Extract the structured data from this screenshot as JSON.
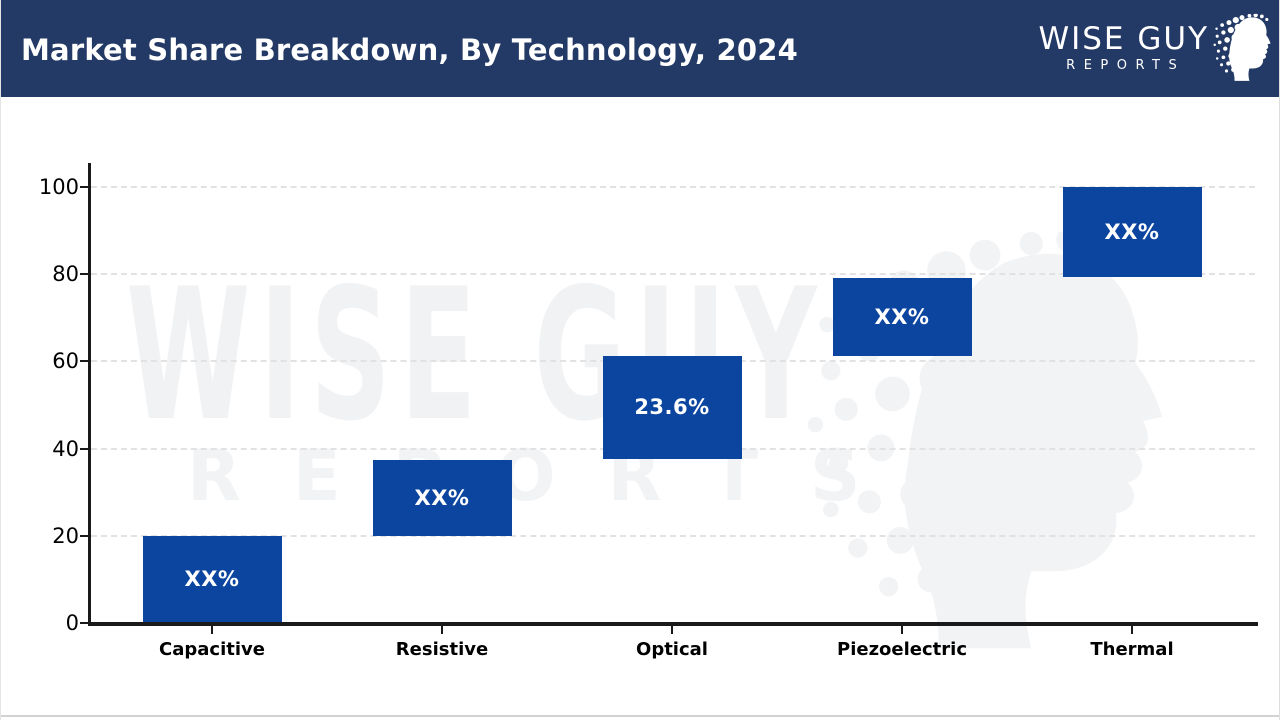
{
  "header": {
    "title": "Market Share Breakdown, By Technology, 2024",
    "brand": {
      "name": "WISE GUY",
      "subtitle": "REPORTS"
    }
  },
  "watermark": {
    "brand_name": "WISE GUY",
    "brand_subtitle": "REPORTS"
  },
  "colors": {
    "header_bg": "#243a66",
    "header_text": "#ffffff",
    "bar": "#0c45a0",
    "bar_label": "#ffffff",
    "axis": "#1a1a1a",
    "gridline": "#e2e2e2",
    "watermark": "#f2f3f5"
  },
  "chart_data": {
    "type": "bar",
    "variant": "waterfall",
    "title": "Market Share Breakdown, By Technology, 2024",
    "xlabel": "",
    "ylabel": "",
    "categories": [
      "Capacitive",
      "Resistive",
      "Optical",
      "Piezoelectric",
      "Thermal"
    ],
    "segments": [
      {
        "category": "Capacitive",
        "start": 0,
        "end": 20,
        "value": 20.0,
        "label": "XX%"
      },
      {
        "category": "Resistive",
        "start": 20,
        "end": 37.5,
        "value": 17.5,
        "label": "XX%"
      },
      {
        "category": "Optical",
        "start": 37.7,
        "end": 61.3,
        "value": 23.6,
        "label": "23.6%"
      },
      {
        "category": "Piezoelectric",
        "start": 61.3,
        "end": 79.2,
        "value": 17.9,
        "label": "XX%"
      },
      {
        "category": "Thermal",
        "start": 79.3,
        "end": 100,
        "value": 20.7,
        "label": "XX%"
      }
    ],
    "yticks": [
      0,
      20,
      40,
      60,
      80,
      100
    ],
    "ylim": [
      0,
      105.5
    ],
    "grid": "horizontal-dashed",
    "legend": "none",
    "note": "Percentage labels masked as XX% except Optical (23.6%)"
  }
}
